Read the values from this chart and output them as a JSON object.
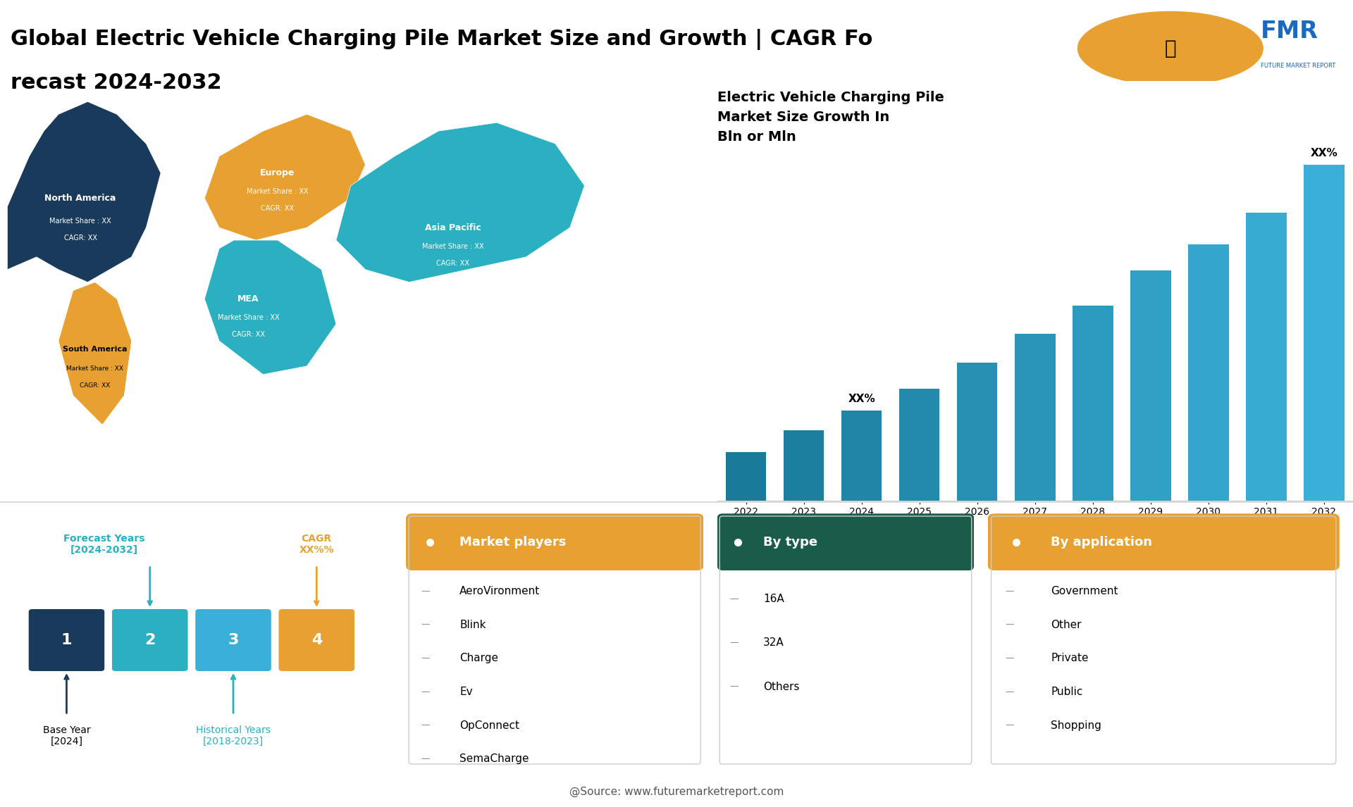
{
  "title_line1": "Global Electric Vehicle Charging Pile Market Size and Growth | CAGR Fo",
  "title_line2": "recast 2024-2032",
  "background_color": "#ffffff",
  "chart_title": "Electric Vehicle Charging Pile\nMarket Size Growth In\nBln or Mln",
  "bar_years": [
    "2022",
    "2023",
    "2024",
    "2025",
    "2026",
    "2027",
    "2028",
    "2029",
    "2030",
    "2031",
    "2032"
  ],
  "bar_heights": [
    1.5,
    2.2,
    2.8,
    3.5,
    4.3,
    5.2,
    6.1,
    7.2,
    8.0,
    9.0,
    10.5
  ],
  "bar_color_dark": "#1a7a9a",
  "bar_color_light": "#3ab0d8",
  "bar_label_2024": "XX%",
  "bar_label_2032": "XX%",
  "map_regions": {
    "North America": {
      "color": "#1a3a5c",
      "label": "North America\nMarket Share : XX\nCAGR: XX"
    },
    "South America": {
      "color": "#e8a030",
      "label": "South America\nMarket Share : XX\nCAGR: XX"
    },
    "Europe": {
      "color": "#e8a030",
      "label": "Europe\nMarket Share : XX\nCAGR: XX"
    },
    "MEA": {
      "color": "#2ab0c0",
      "label": "MEA\nMarket Share : XX\nCAGR: XX"
    },
    "Asia Pacific": {
      "color": "#2ab0c0",
      "label": "Asia Pacific\nMarket Share : XX\nCAGR: XX"
    }
  },
  "bottom_section_bg": "#f5f5f5",
  "timeline_colors": [
    "#1a3a5c",
    "#2ab0c0",
    "#3ab0d8",
    "#e8a030"
  ],
  "timeline_labels": [
    "1",
    "2",
    "3",
    "4"
  ],
  "base_year_label": "Base Year\n[2024]",
  "forecast_label": "Forecast Years\n[2024-2032]",
  "historical_label": "Historical Years\n[2018-2023]",
  "cagr_label": "CAGR\nXX%%",
  "market_players_color": "#e8a030",
  "market_players_title": "Market players",
  "market_players": [
    "AeroVironment",
    "Blink",
    "Charge",
    "Ev",
    "OpConnect",
    "SemaCharge"
  ],
  "by_type_color": "#1a5c4a",
  "by_type_title": "By type",
  "by_type": [
    "16A",
    "32A",
    "Others"
  ],
  "by_application_color": "#e8a030",
  "by_application_title": "By application",
  "by_application": [
    "Government",
    "Other",
    "Private",
    "Public",
    "Shopping"
  ],
  "source_text": "@Source: www.futuremarketreport.com",
  "forecast_color": "#2ab0c0",
  "cagr_color": "#e8a030",
  "base_year_color": "#1a3a5c"
}
